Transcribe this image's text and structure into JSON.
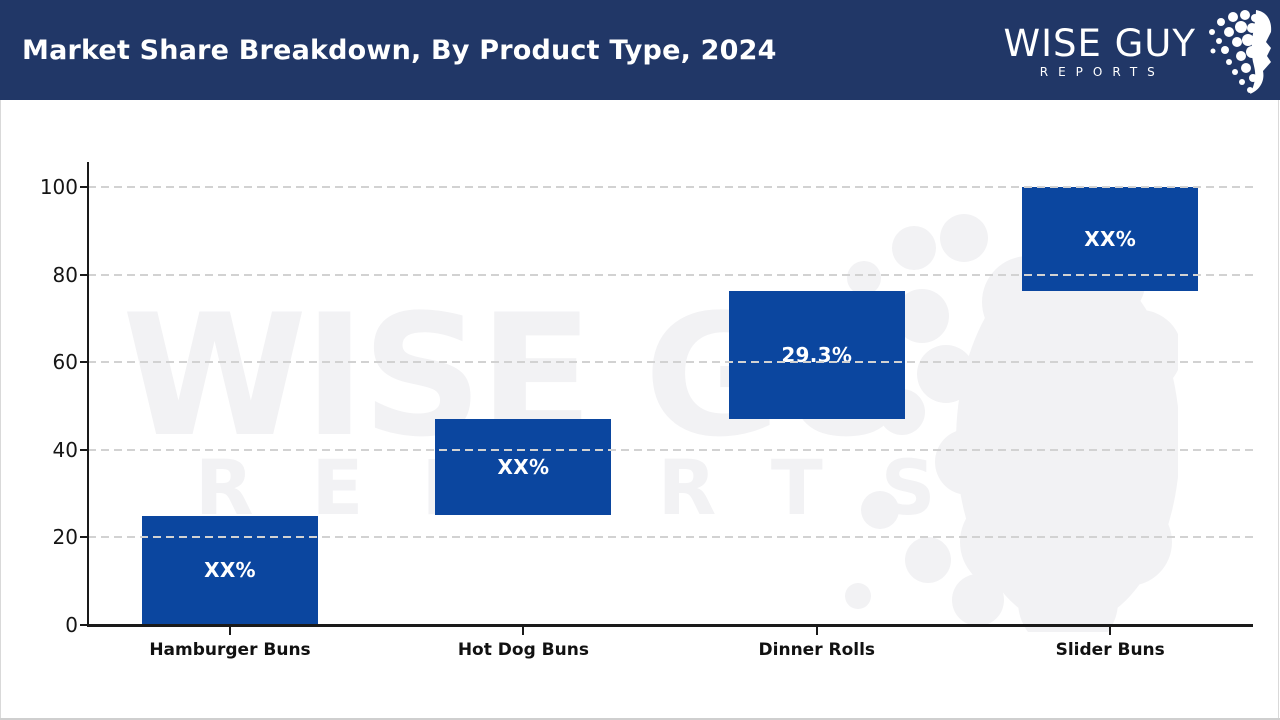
{
  "header": {
    "title": "Market Share Breakdown, By Product Type, 2024",
    "logo": {
      "line1": "WISE GUY",
      "line2": "REPORTS"
    }
  },
  "watermark": {
    "line1": "WISE GU",
    "line2": "REPORTS"
  },
  "chart_data": {
    "type": "bar",
    "subtype": "floating-waterfall",
    "title": "Market Share Breakdown, By Product Type, 2024",
    "categories": [
      "Hamburger Buns",
      "Hot Dog Buns",
      "Dinner Rolls",
      "Slider Buns"
    ],
    "segments": [
      {
        "category": "Hamburger Buns",
        "start": 0,
        "end": 25,
        "value": 25,
        "value_label": "XX%"
      },
      {
        "category": "Hot Dog Buns",
        "start": 25,
        "end": 47,
        "value": 22,
        "value_label": "XX%"
      },
      {
        "category": "Dinner Rolls",
        "start": 47,
        "end": 76.3,
        "value": 29.3,
        "value_label": "29.3%"
      },
      {
        "category": "Slider Buns",
        "start": 76.3,
        "end": 100,
        "value": 23.7,
        "value_label": "XX%"
      }
    ],
    "xlabel": "",
    "ylabel": "",
    "ylim": [
      0,
      105
    ],
    "yticks": [
      0,
      20,
      40,
      60,
      80,
      100
    ],
    "grid": "horizontal-dashed",
    "legend": "none"
  },
  "colors": {
    "header_bg": "#213767",
    "title_color": "#ffffff",
    "bar_color": "#0b469f",
    "grid_color": "#d2d2d2",
    "axis_color": "#1a1a1a",
    "watermark_color": "#f2f2f4"
  }
}
